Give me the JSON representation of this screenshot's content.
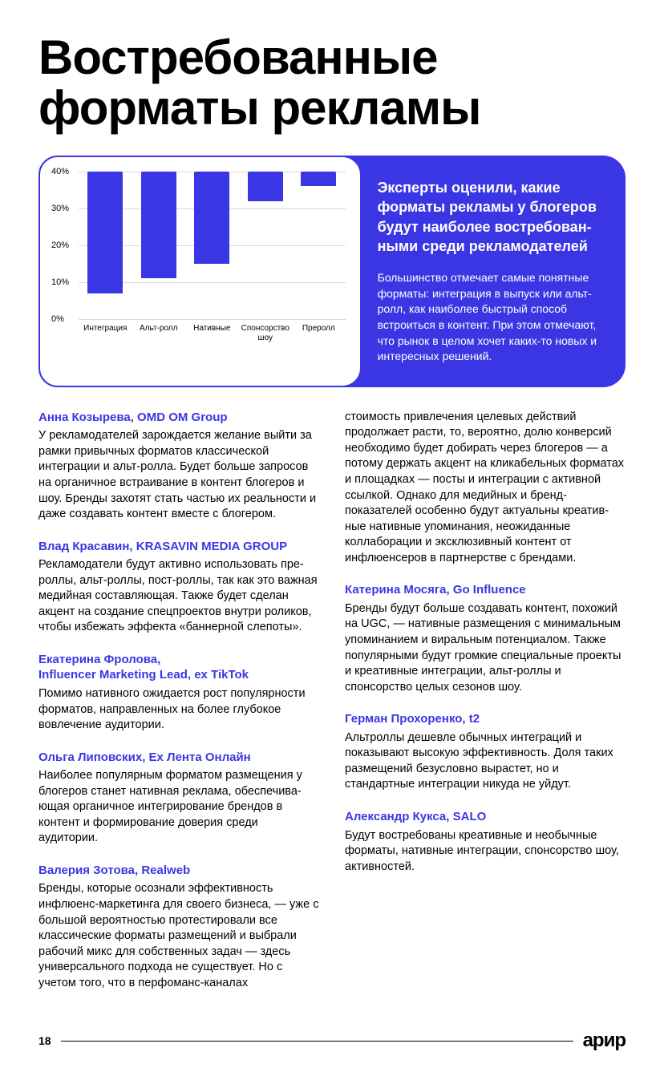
{
  "title": "Востребованные форматы рекламы",
  "chart": {
    "type": "bar",
    "ylim": [
      0,
      40
    ],
    "ytick_step": 10,
    "yticks": [
      "0%",
      "10%",
      "20%",
      "30%",
      "40%"
    ],
    "categories": [
      "Интеграция",
      "Альт-ролл",
      "Нативные",
      "Спонсорство шоу",
      "Преролл"
    ],
    "values": [
      33,
      29,
      25,
      8,
      4
    ],
    "bar_color": "#3b36e3",
    "grid_color": "#d9d9d9",
    "label_fontsize": 10,
    "ylabel_fontsize": 11
  },
  "info": {
    "heading": "Эксперты оценили, какие форматы рекламы у блогеров будут наиболее востребован­ными среди рекламодателей",
    "body": "Большинство отмечает самые понятные форматы: интеграция в выпуск или альт-ролл, как наиболее быстрый способ встроиться в контент. При этом отмечают, что рынок в целом хочет каких-то новых и интересных решений."
  },
  "left_quotes": [
    {
      "author": "Анна Козырева, OMD OM Group",
      "text": "У рекламодателей зарождается желание выйти за рамки привычных форматов классической интеграции и альт-ролла. Будет больше запросов на органичное встраивание в контент блогеров и шоу. Бренды захотят стать частью их реальности и даже создавать контент вместе с блогером."
    },
    {
      "author": "Влад Красавин, KRASAVIN MEDIA GROUP",
      "text": "Рекламодатели будут активно использовать пре-роллы, альт-роллы, пост-роллы, так как это важная медийная составляющая. Также будет сделан акцент на создание спецпроектов внутри роликов, чтобы избежать эффекта «баннерной слепоты»."
    },
    {
      "author": "Екатерина Фролова,\nInfluencer Marketing Lead, ex TikTok",
      "text": "Помимо нативного ожидается рост популярности форматов, направленных на более глубокое вовлечение аудитории."
    },
    {
      "author": "Ольга Липовских, Ex Лента Онлайн",
      "text": "Наиболее популярным форматом размещения у блогеров станет нативная реклама, обеспечива­ющая органичное интегрирование брендов в контент и формирование доверия среди аудитории."
    },
    {
      "author": "Валерия Зотова, Realweb",
      "text": "Бренды, которые осознали эффективность инфлюенс-маркетинга для своего бизнеса, — уже с большой вероятностью протестировали все классические форматы размещений и выбрали рабочий микс для собственных задач — здесь универсального подхода не существует. Но с учетом того, что в перфоманс-каналах"
    }
  ],
  "right_continuation": "стоимость привлечения целевых действий продолжает расти, то, вероятно, долю конверсий необходимо будет добирать через блогеров — а потому держать акцент на кликабельных форматах и площадках — посты и интеграции с активной ссылкой. Однако для медийных и бренд-показателей особенно будут актуальны креатив­ные нативные упоминания, неожидан­ные коллаборации и эксклюзивный контент от инфлюенсеров в партнерстве с брендами.",
  "right_quotes": [
    {
      "author": "Катерина Мосяга, Go Influence",
      "text": "Бренды будут больше создавать контент, похожий на UGC, — нативные размещения с минимальным упоми­нанием и виральным потенциалом. Также популярными будут громкие специальные проекты и креативные интеграции, альт-роллы и спонсорство целых сезонов шоу."
    },
    {
      "author": "Герман Прохоренко, t2",
      "text": "Альтроллы дешевле обычных интеграций и показывают высокую эффективность. Доля таких размещений безусловно вырастет, но и стандартные интеграции никуда не уйдут."
    },
    {
      "author": "Александр Кукса, SALO",
      "text": "Будут востребованы креативные и необычные форматы, нативные интеграции, спонсорство шоу, активностей."
    }
  ],
  "footer": {
    "page": "18",
    "brand": "арир"
  },
  "colors": {
    "accent": "#3b36e3",
    "text": "#000000",
    "bg": "#ffffff"
  }
}
